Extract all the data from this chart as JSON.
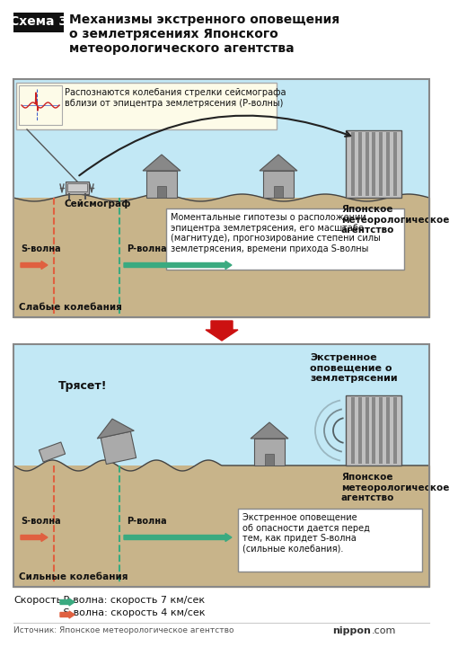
{
  "title_schema": "Схема 3",
  "title_main": "Механизмы экстренного оповещения\nо землетрясениях Японского\nметеорологического агентства",
  "bg_color": "#ffffff",
  "panel_bg": "#c2e8f5",
  "ground_color": "#c8b48a",
  "seismo_box_bg": "#fdfbe8",
  "info_box_bg": "#ffffff",
  "p_wave_color": "#3aaa80",
  "s_wave_color": "#e06040",
  "big_arrow_color": "#cc1111",
  "speed_p_color": "#3aaa80",
  "speed_s_color": "#e06040",
  "panel1_seismo_box": "Распознаются колебания стрелки сейсмографа\nвблизи от эпицентра землетрясения (Р-волны)",
  "panel1_seismo_label": "Сейсмограф",
  "panel1_s_wave": "S-волна",
  "panel1_p_wave": "Р-волна",
  "panel1_weak": "Слабые колебания",
  "panel1_agency": "Японское\nметеорологическое\nагентство",
  "panel1_info": "Моментальные гипотезы о расположении\nэпицентра землетрясения, его масштабе\n(магнитуде), прогнозирование степени силы\nземлетрясения, времени прихода S-волны",
  "panel2_shake": "Трясет!",
  "panel2_s_wave": "S-волна",
  "panel2_p_wave": "Р-волна",
  "panel2_strong": "Сильные колебания",
  "panel2_agency": "Японское\nметеорологическое\nагентство",
  "panel2_alert": "Экстренное\nоповещение о\nземлетрясении",
  "panel2_info": "Экстренное оповещение\nоб опасности дается перед\nтем, как придет S-волна\n(сильные колебания).",
  "footer_speed": "Скорость",
  "footer_p": " Р-волна: скорость 7 км/сек",
  "footer_s": " S-волна: скорость 4 км/сек",
  "footer_source": "Источник: Японское метеорологическое агентство",
  "footer_nippon_pre": "nippon",
  "footer_nippon_post": ".com"
}
